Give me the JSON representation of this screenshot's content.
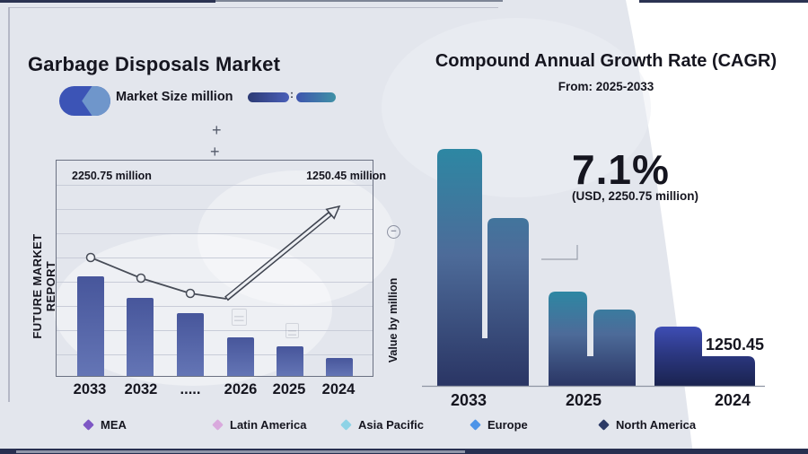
{
  "left_panel": {
    "title": "Garbage Disposals Market",
    "series_label": "Market Size million",
    "watermark_vertical": "FUTURE MARKET REPORT",
    "start_value_label": "2250.75 million",
    "end_value_label": "1250.45 million",
    "categories": [
      "2033",
      "2032",
      ".....",
      "2026",
      "2025",
      "2024"
    ]
  },
  "value_axis_label": "Value by million",
  "right_panel": {
    "title": "Compound Annual Growth Rate (CAGR)",
    "subtitle": "From: 2025-2033",
    "cagr_value": "7.1%",
    "cagr_note": "(USD, 2250.75 million)",
    "value_callout": "1250.45",
    "categories": [
      "2033",
      "2025",
      "2024"
    ]
  },
  "legend": {
    "items": [
      {
        "label": "MEA",
        "color": "#7e57c5"
      },
      {
        "label": "Latin America",
        "color": "#d9a9dd"
      },
      {
        "label": "Asia Pacific",
        "color": "#8ed3e6"
      },
      {
        "label": "Europe",
        "color": "#4d94e8"
      },
      {
        "label": "North America",
        "color": "#2c3a66"
      }
    ]
  },
  "icons": {
    "plus": "+",
    "minus": "−",
    "colon": ":"
  },
  "colors": {
    "background": "#e3e6ed",
    "left_bar_top": "#47569b",
    "left_bar_bottom": "#6475b5",
    "right_bar_teal_top": "#2d87a3",
    "right_bar_mid": "#4d6b99",
    "right_bar_navy_bottom": "#2a3564",
    "right_bar_2024_top": "#3e4db4",
    "right_bar_2024_bottom": "#1a234f",
    "text": "#15151f",
    "edge_strip": "#272f50"
  },
  "chart_data": [
    {
      "type": "bar",
      "title": "Garbage Disposals Market",
      "series_label": "Market Size million",
      "categories": [
        "2033",
        "2032",
        ".....",
        "2026",
        "2025",
        "2024"
      ],
      "values_relative": [
        111,
        87,
        70,
        43,
        33,
        20
      ],
      "unit": "relative height (illustrative, value axis unlabeled)",
      "annotations": [
        "2250.75 million",
        "1250.45 million"
      ],
      "ylabel": "Value by million",
      "grid": true,
      "legend_position": "bottom",
      "overlay": "marker line declining across first three bars, then outlined arrow rising to top right"
    },
    {
      "type": "bar",
      "title": "Compound Annual Growth Rate (CAGR)",
      "subtitle": "From: 2025-2033",
      "cagr": "7.1%",
      "cagr_note": "(USD, 2250.75 million)",
      "categories": [
        "2033",
        "2025",
        "2024"
      ],
      "series": [
        {
          "name": "tall-bar",
          "values_relative": [
            264,
            105,
            66
          ]
        },
        {
          "name": "short-bar",
          "values_relative": [
            187,
            85,
            33
          ]
        }
      ],
      "annotations": [
        "1250.45"
      ],
      "grid": false
    }
  ]
}
